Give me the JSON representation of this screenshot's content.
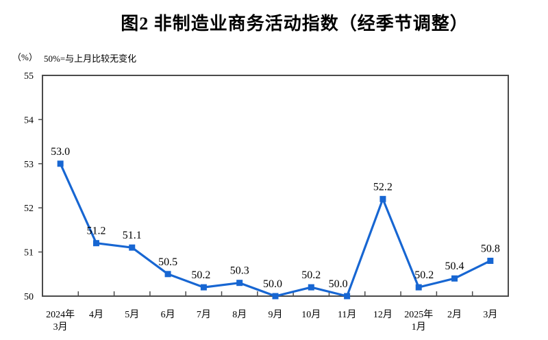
{
  "chart_data": {
    "type": "line",
    "title": "图2 非制造业商务活动指数（经季节调整）",
    "unit_label": "（%）",
    "note": "50%=与上月比较无变化",
    "categories": [
      [
        "2024年",
        "3月"
      ],
      [
        "4月"
      ],
      [
        "5月"
      ],
      [
        "6月"
      ],
      [
        "7月"
      ],
      [
        "8月"
      ],
      [
        "9月"
      ],
      [
        "10月"
      ],
      [
        "11月"
      ],
      [
        "12月"
      ],
      [
        "2025年",
        "1月"
      ],
      [
        "2月"
      ],
      [
        "3月"
      ]
    ],
    "values": [
      53.0,
      51.2,
      51.1,
      50.5,
      50.2,
      50.3,
      50.0,
      50.2,
      50.0,
      52.2,
      50.2,
      50.4,
      50.8
    ],
    "point_labels": [
      "53.0",
      "51.2",
      "51.1",
      "50.5",
      "50.2",
      "50.3",
      "50.0",
      "50.2",
      "50.0",
      "52.2",
      "50.2",
      "50.4",
      "50.8"
    ],
    "label_offsets": {
      "4": [
        -4,
        -13
      ],
      "6": [
        -4,
        -13
      ],
      "8": [
        -13,
        -13
      ],
      "10": [
        8,
        -13
      ]
    },
    "ylim": [
      50,
      55
    ],
    "yticks": [
      "50",
      "51",
      "52",
      "53",
      "54",
      "55"
    ],
    "xlabel": "",
    "ylabel": "",
    "legend": "none",
    "grid": false,
    "line_color": "#1766d2",
    "marker": "square",
    "frame_color": "#4a4a4a",
    "text_color": "#000000"
  }
}
